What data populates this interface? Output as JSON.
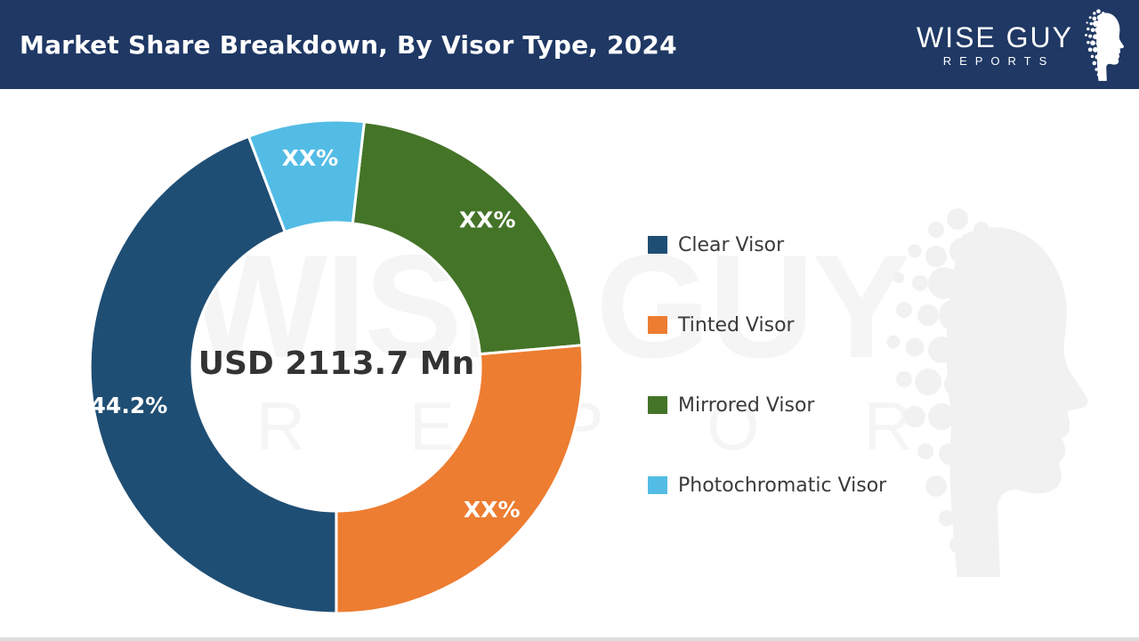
{
  "header": {
    "title": "Market Share Breakdown, By Visor Type, 2024",
    "logo": {
      "line1": "WISE GUY",
      "line2": "REPORTS"
    }
  },
  "watermark": {
    "line1": "WISE GUY",
    "line2": "R E P O R T S"
  },
  "chart_data": {
    "type": "donut",
    "title": "Market Share Breakdown, By Visor Type, 2024",
    "center_label": "USD 2113.7 Mn",
    "start_angle_deg": 6.5,
    "direction": "clockwise-from-top",
    "slices": [
      {
        "name": "Mirrored Visor",
        "label": "XX%",
        "value_pct": 21.8,
        "color": "#447428"
      },
      {
        "name": "Tinted Visor",
        "label": "XX%",
        "value_pct": 26.4,
        "color": "#ED7D31"
      },
      {
        "name": "Clear Visor",
        "label": "44.2%",
        "value_pct": 44.2,
        "color": "#1F4E74"
      },
      {
        "name": "Photochromatic Visor",
        "label": "XX%",
        "value_pct": 7.6,
        "color": "#53BCE5"
      }
    ],
    "legend_position": "right",
    "legend": [
      {
        "label": "Clear Visor",
        "color": "#1F4E74"
      },
      {
        "label": "Tinted Visor",
        "color": "#ED7D31"
      },
      {
        "label": "Mirrored Visor",
        "color": "#447428"
      },
      {
        "label": "Photochromatic Visor",
        "color": "#53BCE5"
      }
    ]
  },
  "colors": {
    "header_bg": "#1F3864",
    "center_text": "#333333",
    "legend_text": "#3A3A3A",
    "watermark": "#F5F5F5",
    "watermark_face": "#F1F1F1",
    "bottom_strip": "#DEDEDE"
  }
}
